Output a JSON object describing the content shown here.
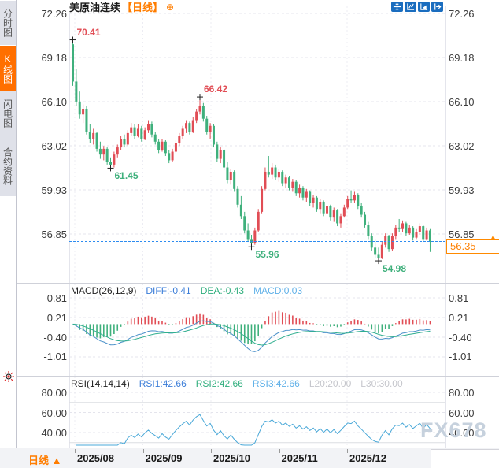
{
  "window": {
    "watermark": "FX678"
  },
  "sidebar": {
    "items": [
      {
        "label": "分时图"
      },
      {
        "label": "K线图",
        "active": true
      },
      {
        "label": "闪电图"
      },
      {
        "label": "合约资料"
      }
    ]
  },
  "header": {
    "title": "美原油连续",
    "period": "【日线】",
    "add_icon": "⊕"
  },
  "toolbar": {
    "icons": [
      "crosshair",
      "scale-x-axis",
      "scale-y-axis",
      "pan-right"
    ]
  },
  "indicators": {
    "macd": {
      "name": "MACD(26,12,9)",
      "diff_label": "DIFF:-0.41",
      "dea_label": "DEA:-0.43",
      "macd_label": "MACD:0.03"
    },
    "rsi": {
      "name": "RSI(14,14,14)",
      "rsi1_label": "RSI1:42.66",
      "rsi2_label": "RSI2:42.66",
      "rsi3_label": "RSI3:42.66",
      "l20_label": "L20:20.00",
      "l30_label": "L30:30.00"
    }
  },
  "bottom_bar": {
    "period_label": "日线",
    "period_arrow": "▲"
  },
  "price_marker": {
    "value": "56.35",
    "arrow": "▲"
  },
  "colors": {
    "up": "#e14d55",
    "down": "#3fb07c",
    "accent_orange": "#ff7d00",
    "price_line": "#2d8cf0",
    "diff_line": "#4a90c9",
    "dea_line": "#2fae8f",
    "rsi_line": "#49a8d8",
    "grid": "#e4e4ec",
    "grid_month": "#ececf3",
    "cross": "#222222"
  },
  "chart_data": {
    "type": "candlestick",
    "title": "美原油连续 日线",
    "x_axis_labels": [
      "2025/08",
      "2025/09",
      "2025/10",
      "2025/11",
      "2025/12"
    ],
    "main_y_labels": [
      "72.26",
      "69.18",
      "66.10",
      "63.02",
      "59.93",
      "56.85"
    ],
    "macd_y_labels": [
      "0.81",
      "0.21",
      "-0.40",
      "-1.01"
    ],
    "rsi_y_labels": [
      "80.00",
      "60.00",
      "40.00"
    ],
    "current_price": 56.35,
    "macd_values": {
      "diff": -0.41,
      "dea": -0.43,
      "macd": 0.03
    },
    "rsi_values": {
      "rsi1": 42.66,
      "rsi2": 42.66,
      "rsi3": 42.66,
      "l20": 20.0,
      "l30": 30.0
    },
    "annotations": [
      {
        "index": 0,
        "price": 70.41,
        "text": "70.41",
        "kind": "high"
      },
      {
        "index": 11,
        "price": 61.45,
        "text": "61.45",
        "kind": "low"
      },
      {
        "index": 37,
        "price": 66.42,
        "text": "66.42",
        "kind": "high"
      },
      {
        "index": 52,
        "price": 55.96,
        "text": "55.96",
        "kind": "low"
      },
      {
        "index": 89,
        "price": 54.98,
        "text": "54.98",
        "kind": "low"
      }
    ],
    "candles": [
      [
        70.1,
        70.41,
        67.2,
        67.5
      ],
      [
        67.5,
        68.4,
        65.8,
        66.1
      ],
      [
        66.1,
        66.8,
        64.9,
        65.2
      ],
      [
        65.2,
        65.9,
        64.6,
        65.6
      ],
      [
        65.6,
        65.8,
        63.8,
        64.0
      ],
      [
        64.0,
        64.5,
        63.2,
        63.5
      ],
      [
        63.5,
        64.2,
        63.1,
        63.9
      ],
      [
        63.9,
        64.0,
        62.6,
        62.8
      ],
      [
        62.8,
        63.3,
        62.1,
        62.4
      ],
      [
        62.4,
        63.0,
        62.0,
        62.8
      ],
      [
        62.8,
        62.9,
        61.7,
        61.9
      ],
      [
        61.9,
        62.2,
        61.45,
        61.7
      ],
      [
        61.7,
        62.6,
        61.5,
        62.4
      ],
      [
        62.4,
        63.1,
        62.2,
        62.9
      ],
      [
        62.9,
        63.7,
        62.7,
        63.5
      ],
      [
        63.5,
        63.8,
        62.9,
        63.1
      ],
      [
        63.1,
        64.1,
        63.0,
        63.9
      ],
      [
        63.9,
        64.6,
        63.7,
        64.3
      ],
      [
        64.3,
        64.5,
        63.5,
        63.7
      ],
      [
        63.7,
        64.5,
        63.6,
        64.2
      ],
      [
        64.2,
        64.4,
        63.3,
        63.5
      ],
      [
        63.5,
        64.3,
        63.4,
        64.1
      ],
      [
        64.1,
        64.8,
        63.9,
        64.5
      ],
      [
        64.5,
        64.7,
        63.6,
        63.8
      ],
      [
        63.8,
        64.0,
        63.1,
        63.3
      ],
      [
        63.3,
        63.5,
        62.5,
        62.7
      ],
      [
        62.7,
        63.5,
        62.6,
        63.3
      ],
      [
        63.3,
        63.4,
        62.3,
        62.5
      ],
      [
        62.5,
        62.7,
        61.8,
        62.0
      ],
      [
        62.0,
        62.8,
        61.9,
        62.6
      ],
      [
        62.6,
        63.4,
        62.5,
        63.2
      ],
      [
        63.2,
        63.9,
        63.0,
        63.7
      ],
      [
        63.7,
        64.4,
        63.5,
        64.2
      ],
      [
        64.2,
        64.8,
        63.9,
        64.6
      ],
      [
        64.6,
        64.7,
        63.8,
        64.0
      ],
      [
        64.0,
        65.0,
        63.9,
        64.8
      ],
      [
        64.8,
        65.6,
        64.6,
        65.4
      ],
      [
        65.4,
        66.42,
        65.2,
        65.8
      ],
      [
        65.8,
        66.0,
        64.7,
        64.9
      ],
      [
        64.9,
        65.1,
        63.8,
        64.0
      ],
      [
        64.0,
        64.6,
        63.5,
        64.4
      ],
      [
        64.4,
        64.5,
        62.9,
        63.1
      ],
      [
        63.1,
        63.3,
        61.9,
        62.1
      ],
      [
        62.1,
        62.9,
        61.8,
        62.7
      ],
      [
        62.7,
        62.8,
        61.3,
        61.5
      ],
      [
        61.5,
        61.9,
        60.4,
        60.6
      ],
      [
        60.6,
        61.4,
        60.3,
        61.2
      ],
      [
        61.2,
        61.3,
        59.8,
        60.0
      ],
      [
        60.0,
        60.2,
        58.7,
        58.9
      ],
      [
        58.9,
        59.5,
        57.9,
        58.1
      ],
      [
        58.1,
        58.4,
        56.9,
        57.1
      ],
      [
        57.1,
        57.6,
        56.3,
        56.5
      ],
      [
        56.5,
        56.8,
        55.96,
        56.2
      ],
      [
        56.2,
        57.3,
        56.1,
        57.1
      ],
      [
        57.1,
        58.6,
        57.0,
        58.4
      ],
      [
        58.4,
        60.2,
        58.3,
        60.0
      ],
      [
        60.0,
        61.5,
        59.9,
        61.2
      ],
      [
        61.2,
        62.3,
        60.8,
        61.0
      ],
      [
        61.0,
        61.8,
        60.7,
        61.5
      ],
      [
        61.5,
        61.7,
        60.6,
        60.8
      ],
      [
        60.8,
        61.4,
        60.5,
        61.2
      ],
      [
        61.2,
        61.3,
        60.2,
        60.4
      ],
      [
        60.4,
        61.0,
        60.1,
        60.8
      ],
      [
        60.8,
        60.9,
        59.9,
        60.1
      ],
      [
        60.1,
        60.7,
        59.8,
        60.5
      ],
      [
        60.5,
        60.6,
        59.5,
        59.7
      ],
      [
        59.7,
        60.3,
        59.4,
        60.1
      ],
      [
        60.1,
        60.2,
        59.2,
        59.4
      ],
      [
        59.4,
        60.0,
        59.1,
        59.8
      ],
      [
        59.8,
        59.9,
        58.8,
        59.0
      ],
      [
        59.0,
        59.6,
        58.7,
        59.4
      ],
      [
        59.4,
        59.5,
        58.4,
        58.6
      ],
      [
        58.6,
        59.3,
        58.3,
        59.1
      ],
      [
        59.1,
        59.2,
        58.1,
        58.3
      ],
      [
        58.3,
        59.0,
        58.0,
        58.8
      ],
      [
        58.8,
        58.9,
        57.8,
        58.0
      ],
      [
        58.0,
        58.7,
        57.7,
        58.5
      ],
      [
        58.5,
        58.6,
        57.4,
        57.6
      ],
      [
        57.6,
        58.3,
        57.3,
        58.1
      ],
      [
        58.1,
        58.9,
        58.0,
        58.7
      ],
      [
        58.7,
        59.5,
        58.6,
        59.3
      ],
      [
        59.3,
        59.9,
        59.0,
        59.2
      ],
      [
        59.2,
        59.8,
        59.0,
        59.6
      ],
      [
        59.6,
        59.7,
        58.6,
        58.8
      ],
      [
        58.8,
        59.0,
        58.0,
        58.2
      ],
      [
        58.2,
        58.4,
        57.3,
        57.5
      ],
      [
        57.5,
        57.7,
        56.5,
        56.7
      ],
      [
        56.7,
        56.9,
        55.7,
        55.9
      ],
      [
        55.9,
        56.5,
        55.2,
        55.4
      ],
      [
        55.4,
        55.9,
        54.98,
        55.2
      ],
      [
        55.2,
        56.3,
        55.1,
        56.1
      ],
      [
        56.1,
        56.9,
        55.9,
        56.7
      ],
      [
        56.7,
        56.8,
        55.6,
        55.8
      ],
      [
        55.8,
        56.9,
        55.7,
        56.7
      ],
      [
        56.7,
        57.5,
        56.5,
        57.3
      ],
      [
        57.3,
        57.9,
        57.0,
        57.2
      ],
      [
        57.2,
        57.8,
        57.0,
        57.6
      ],
      [
        57.6,
        57.7,
        56.7,
        56.9
      ],
      [
        56.9,
        57.5,
        56.8,
        57.3
      ],
      [
        57.3,
        57.4,
        56.4,
        56.6
      ],
      [
        56.6,
        57.2,
        56.5,
        57.0
      ],
      [
        57.0,
        57.6,
        56.8,
        57.4
      ],
      [
        57.4,
        57.5,
        56.3,
        56.5
      ],
      [
        56.5,
        57.3,
        56.4,
        57.1
      ],
      [
        57.1,
        57.2,
        55.6,
        56.35
      ]
    ]
  }
}
